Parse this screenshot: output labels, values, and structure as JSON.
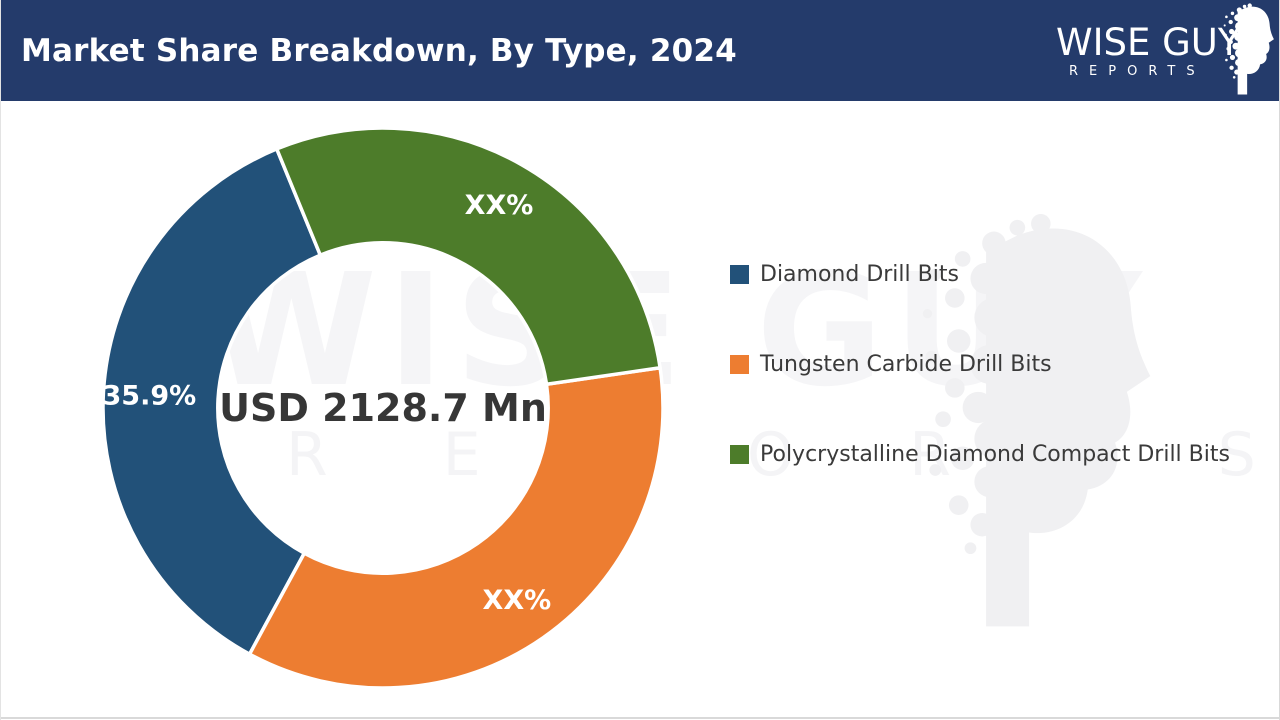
{
  "header": {
    "title": "Market Share Breakdown, By Type, 2024",
    "bg_color": "#243B6B",
    "logo": {
      "line1": "WISE GUY",
      "line2": "REPORTS"
    }
  },
  "watermark": {
    "line1": "WISE GUY",
    "line2": "R E P O R T S"
  },
  "chart_data": {
    "type": "pie",
    "subtype": "donut",
    "title": "Market Share Breakdown, By Type, 2024",
    "center_label": "USD 2128.7 Mn",
    "start_angle_deg": 112.3,
    "direction": "counterclockwise",
    "inner_radius_ratio": 0.59,
    "legend_position": "right",
    "series": [
      {
        "name": "Diamond Drill Bits",
        "value_pct": 35.9,
        "label": "35.9%",
        "color": "#225179"
      },
      {
        "name": "Tungsten Carbide Drill Bits",
        "value_pct": 35.2,
        "label": "XX%",
        "color": "#ED7D31"
      },
      {
        "name": "Polycrystalline Diamond Compact Drill Bits",
        "value_pct": 28.9,
        "label": "XX%",
        "color": "#4D7C2A"
      }
    ]
  }
}
